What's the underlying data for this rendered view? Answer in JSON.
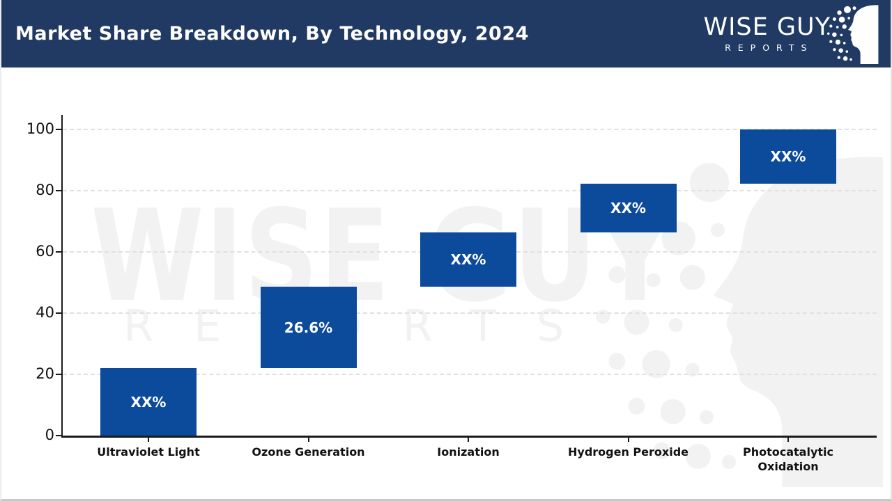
{
  "header": {
    "title": "Market Share Breakdown, By Technology, 2024",
    "logo": {
      "line1": "WISE GUY",
      "line2": "REPORTS"
    }
  },
  "watermark": {
    "line1": "WISE GUY",
    "line2": "REPORTS"
  },
  "colors": {
    "header_bg": "#213a63",
    "bar": "#0c4a9c",
    "bar_label": "#ffffff",
    "axis": "#1a1a1a",
    "grid": "#e0e0e0",
    "tick_text": "#111111",
    "watermark": "#f2f2f2",
    "title_text": "#ffffff"
  },
  "chart_data": {
    "type": "bar",
    "subtype": "waterfall",
    "title": "Market Share Breakdown, By Technology, 2024",
    "xlabel": "",
    "ylabel": "",
    "ylim": [
      0,
      100
    ],
    "yticks": [
      0,
      20,
      40,
      60,
      80,
      100
    ],
    "grid": "horizontal-dashed",
    "legend": "none",
    "categories": [
      "Ultraviolet Light",
      "Ozone Generation",
      "Ionization",
      "Hydrogen Peroxide",
      "Photocatalytic Oxidation"
    ],
    "segments": [
      {
        "category": "Ultraviolet Light",
        "start": 0,
        "end": 22,
        "value": 22.0,
        "label": "XX%"
      },
      {
        "category": "Ozone Generation",
        "start": 22,
        "end": 48.6,
        "value": 26.6,
        "label": "26.6%"
      },
      {
        "category": "Ionization",
        "start": 48.6,
        "end": 66.4,
        "value": 17.8,
        "label": "XX%"
      },
      {
        "category": "Hydrogen Peroxide",
        "start": 66.4,
        "end": 82.2,
        "value": 15.8,
        "label": "XX%"
      },
      {
        "category": "Photocatalytic Oxidation",
        "start": 82.2,
        "end": 100,
        "value": 17.8,
        "label": "XX%"
      }
    ]
  }
}
